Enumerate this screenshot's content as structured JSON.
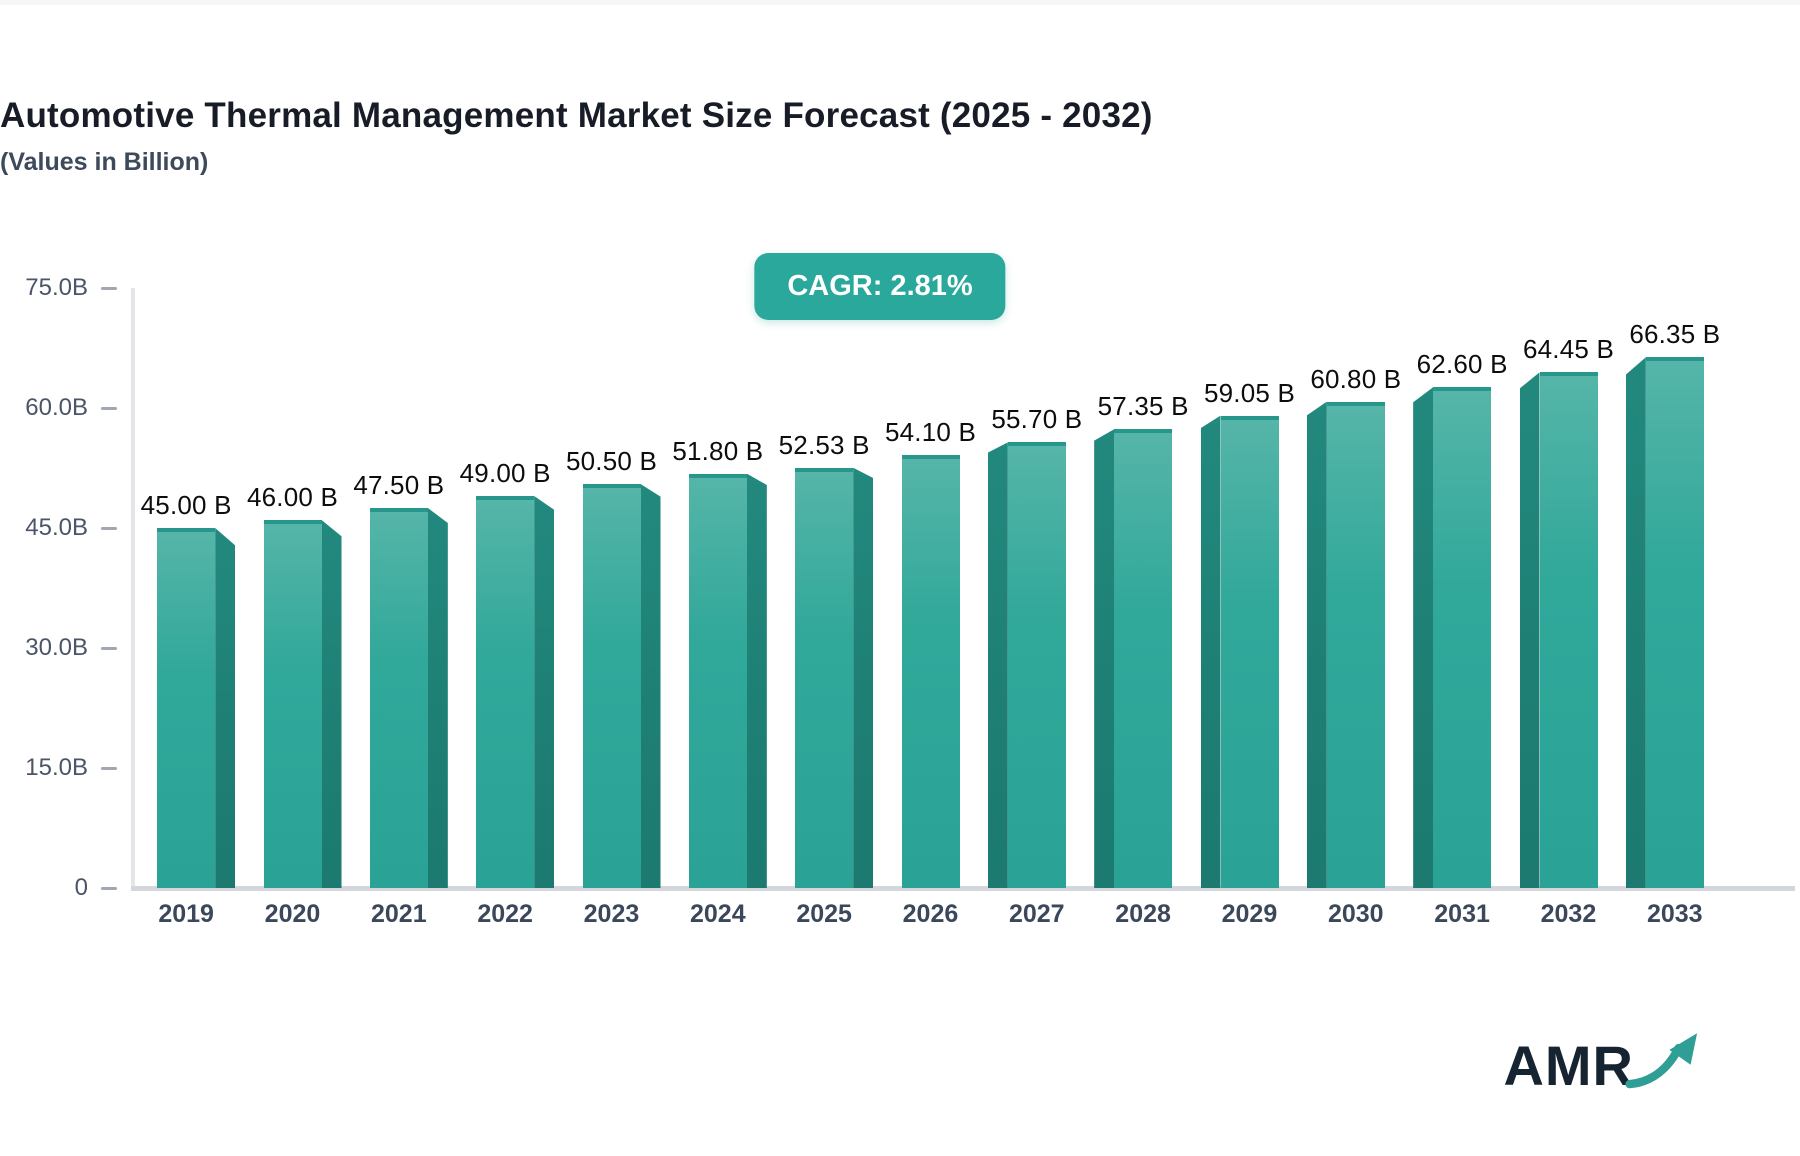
{
  "header": {
    "title": "Automotive Thermal Management Market Size Forecast (2025 - 2032)",
    "subtitle": "(Values in Billion)",
    "cagr_badge": "CAGR: 2.81%"
  },
  "logo": {
    "text": "AMR"
  },
  "colors": {
    "accent": "#2aa89b",
    "bar_face": "#30a89a",
    "bar_face_light": "#55b5a8",
    "bar_side": "#1e7f74",
    "bar_top_edge": "#27968b",
    "axis_line": "#d3d6db",
    "grid_line": "#e3e5e9",
    "tick_text": "#4a5568",
    "year_text": "#3b475a",
    "value_text": "#0d0d0d",
    "badge_text": "#ffffff"
  },
  "chart_data": {
    "type": "bar",
    "title": "Automotive Thermal Management Market Size Forecast (2025 - 2032)",
    "subtitle": "(Values in Billion)",
    "xlabel": "",
    "ylabel": "",
    "ylim": [
      0,
      75
    ],
    "grid": false,
    "legend": false,
    "categories": [
      "2019",
      "2020",
      "2021",
      "2022",
      "2023",
      "2024",
      "2025",
      "2026",
      "2027",
      "2028",
      "2029",
      "2030",
      "2031",
      "2032",
      "2033"
    ],
    "values": [
      45.0,
      46.0,
      47.5,
      49.0,
      50.5,
      51.8,
      52.53,
      54.1,
      55.7,
      57.35,
      59.05,
      60.8,
      62.6,
      64.45,
      66.35
    ],
    "value_labels": [
      "45.00 B",
      "46.00 B",
      "47.50 B",
      "49.00 B",
      "50.50 B",
      "51.80 B",
      "52.53 B",
      "54.10 B",
      "55.70 B",
      "57.35 B",
      "59.05 B",
      "60.80 B",
      "62.60 B",
      "64.45 B",
      "66.35 B"
    ],
    "yticks": [
      {
        "value": 75,
        "label": "75.0B"
      },
      {
        "value": 60,
        "label": "60.0B"
      },
      {
        "value": 45,
        "label": "45.0B"
      },
      {
        "value": 30,
        "label": "30.0B"
      },
      {
        "value": 15,
        "label": "15.0B"
      },
      {
        "value": 0,
        "label": "0"
      }
    ],
    "annotation": "CAGR: 2.81%"
  }
}
